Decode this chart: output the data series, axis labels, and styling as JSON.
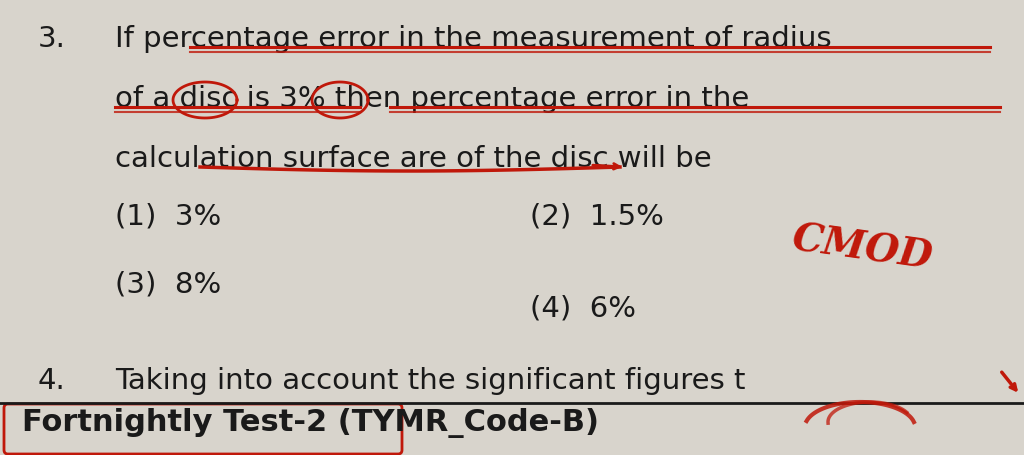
{
  "bg_color": "#d8d4cc",
  "title": "Fortnightly Test-2 (TYMR_Code-B)",
  "title_fontsize": 22,
  "question_number": "3.",
  "question_text_line1": "If percentage error in the measurement of radius",
  "question_text_line2": "of a disc is 3% then percentage error in the",
  "question_text_line3": "calculation surface are of the disc will be",
  "option1": "(1)  3%",
  "option2": "(2)  1.5%",
  "option3": "(3)  8%",
  "option4": "(4)  6%",
  "annotation": "CMOD",
  "next_q": "4.",
  "next_q_text": "Taking into account the significant figures t",
  "text_color": "#1a1a1a",
  "red_color": "#c0180a",
  "font_size_main": 21,
  "font_size_options": 21
}
